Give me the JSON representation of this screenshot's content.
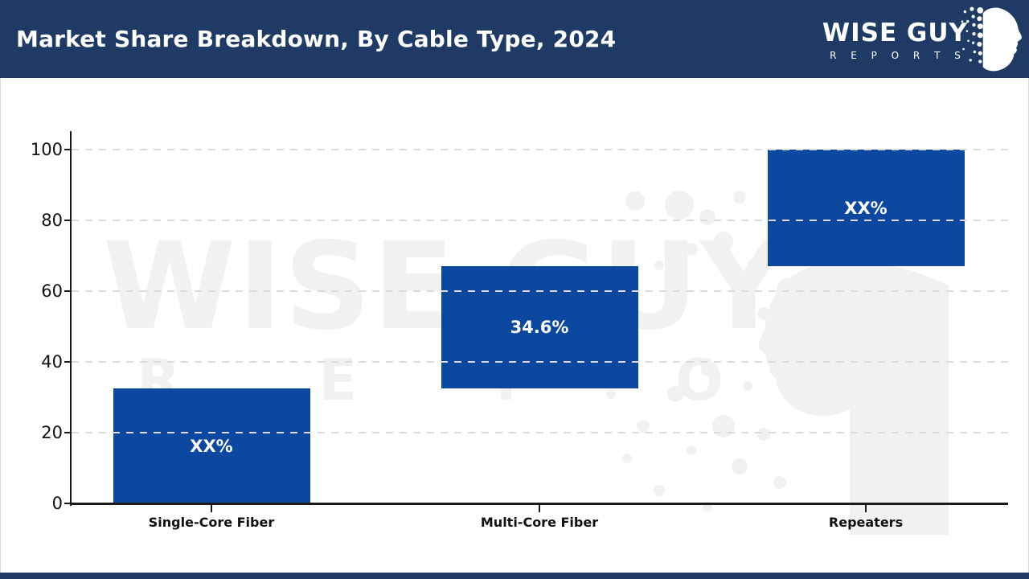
{
  "header": {
    "title": "Market Share Breakdown, By Cable Type, 2024",
    "background_color": "#203a66"
  },
  "brand": {
    "name": "WISE GUY",
    "tagline": "R E P O R T S",
    "logo_icon": "wiseguy-dotted-head-icon"
  },
  "watermark": {
    "name": "WISE GUY",
    "tagline": "R E P O R T S",
    "icon": "wiseguy-dotted-head-watermark"
  },
  "chart_data": {
    "type": "bar",
    "variant": "stacked-waterfall",
    "title": "Market Share Breakdown, By Cable Type, 2024",
    "categories": [
      "Single-Core Fiber",
      "Multi-Core Fiber",
      "Repeaters"
    ],
    "segments": [
      {
        "category": "Single-Core Fiber",
        "start": 0,
        "end": 32.4,
        "value": 32.4,
        "label": "XX%"
      },
      {
        "category": "Multi-Core Fiber",
        "start": 32.4,
        "end": 67.0,
        "value": 34.6,
        "label": "34.6%"
      },
      {
        "category": "Repeaters",
        "start": 67.0,
        "end": 100,
        "value": 33.0,
        "label": "XX%"
      }
    ],
    "xlabel": "",
    "ylabel": "",
    "ylim": [
      0,
      100
    ],
    "yticks": [
      0,
      20,
      40,
      60,
      80,
      100
    ],
    "grid": "horizontal-dashed",
    "legend": "none",
    "bar_color": "#0c48a0",
    "bar_label_color": "#ffffff",
    "axis_color": "#1a1a1a",
    "gridline_color": "#dcdcdc"
  }
}
